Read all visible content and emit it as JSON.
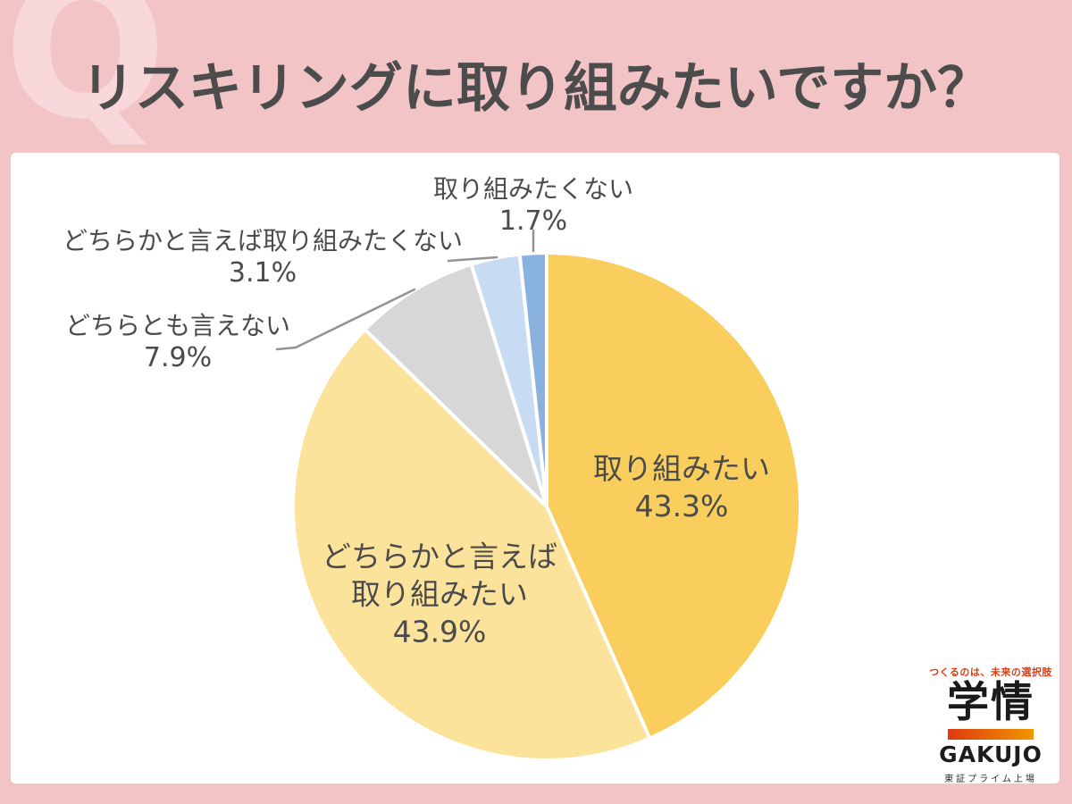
{
  "page": {
    "q_watermark": "Q",
    "title": "リスキリングに取り組みたいですか？"
  },
  "colors": {
    "background_pink": "#F2C4C6",
    "watermark_pink": "#F8D8DA",
    "panel_white": "#FFFFFF",
    "title_gray": "#4C4C4C",
    "label_gray": "#4B4B4B",
    "leader_line_gray": "#939393"
  },
  "chart_data": {
    "type": "pie",
    "title": "リスキリングに取り組みたいですか？",
    "unit": "%",
    "start_angle_deg": 0,
    "direction": "clockwise",
    "legend_position": "none",
    "segments": [
      {
        "label": "取り組みたい",
        "value": 43.3,
        "display": "43.3%",
        "color": "#F9CE5D",
        "label_lines": [
          "取り組みたい"
        ],
        "label_placement": "inside"
      },
      {
        "label": "どちらかと言えば取り組みたい",
        "value": 43.9,
        "display": "43.9%",
        "color": "#FBE39B",
        "label_lines": [
          "どちらかと言えば",
          "取り組みたい"
        ],
        "label_placement": "inside"
      },
      {
        "label": "どちらとも言えない",
        "value": 7.9,
        "display": "7.9%",
        "color": "#D7D7D7",
        "label_lines": [
          "どちらとも言えない"
        ],
        "label_placement": "outside"
      },
      {
        "label": "どちらかと言えば取り組みたくない",
        "value": 3.1,
        "display": "3.1%",
        "color": "#C7DCF2",
        "label_lines": [
          "どちらかと言えば取り組みたくない"
        ],
        "label_placement": "outside"
      },
      {
        "label": "取り組みたくない",
        "value": 1.7,
        "display": "1.7%",
        "color": "#8AB2DF",
        "label_lines": [
          "取り組みたくない"
        ],
        "label_placement": "outside"
      }
    ]
  },
  "logo": {
    "tagline": "つくるのは、未来の選択肢",
    "brand_kanji": "学情",
    "brand_roman": "GAKUJO",
    "listing": "東証プライム上場",
    "tagline_color": "#E8380D",
    "bar_gradient_from": "#DC3A10",
    "bar_gradient_to": "#F29600"
  }
}
